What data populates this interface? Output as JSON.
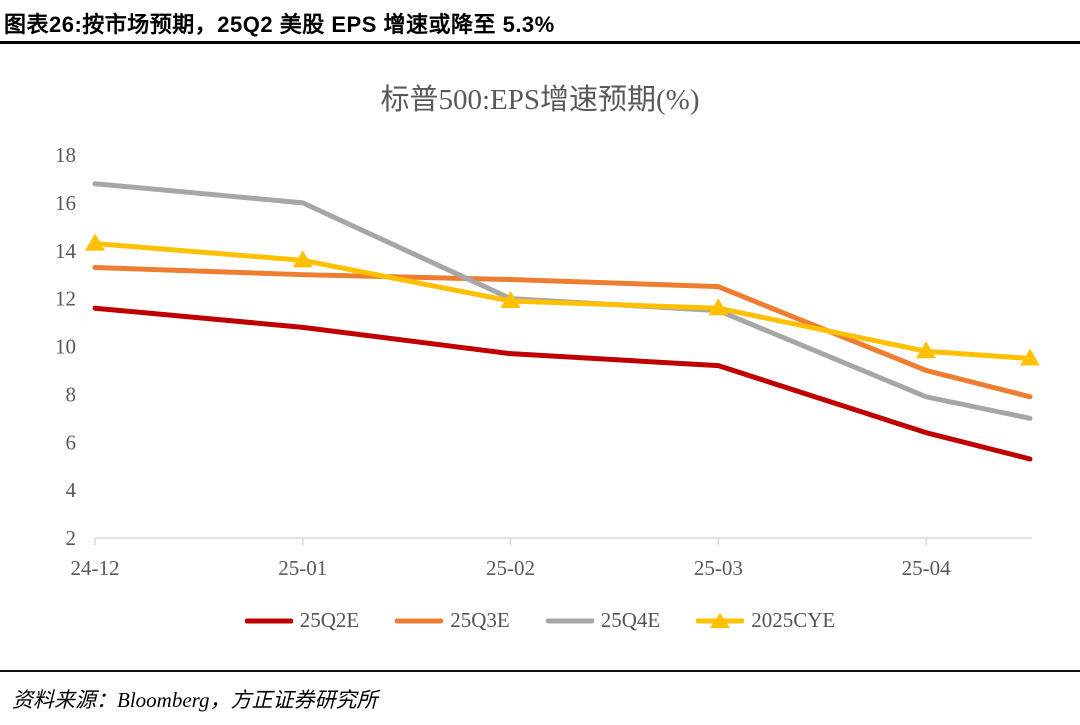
{
  "header": {
    "caption": "图表26:按市场预期，25Q2 美股 EPS 增速或降至 5.3%"
  },
  "chart_data": {
    "type": "line",
    "title": "标普500:EPS增速预期(%)",
    "categories": [
      "24-12",
      "25-01",
      "25-02",
      "25-03",
      "25-04"
    ],
    "x_index": [
      0,
      1,
      2,
      3,
      4,
      4.5
    ],
    "x_max_index": 4.5,
    "ylim": [
      2,
      18
    ],
    "yticks": [
      2,
      4,
      6,
      8,
      10,
      12,
      14,
      16,
      18
    ],
    "grid": false,
    "legend_position": "bottom",
    "series": [
      {
        "name": "25Q2E",
        "color": "#C00000",
        "marker": "none",
        "values": [
          11.6,
          10.8,
          9.7,
          9.2,
          6.4,
          5.3
        ]
      },
      {
        "name": "25Q3E",
        "color": "#ED7D31",
        "marker": "none",
        "values": [
          13.3,
          13.0,
          12.8,
          12.5,
          9.0,
          7.9
        ]
      },
      {
        "name": "25Q4E",
        "color": "#A6A6A6",
        "marker": "none",
        "values": [
          16.8,
          16.0,
          12.0,
          11.5,
          7.9,
          7.0
        ]
      },
      {
        "name": "2025CYE",
        "color": "#FFC000",
        "marker": "triangle",
        "values": [
          14.3,
          13.6,
          11.9,
          11.6,
          9.8,
          9.5
        ]
      }
    ]
  },
  "footer": {
    "source": "资料来源：Bloomberg，方正证券研究所"
  },
  "colors": {
    "axis_line": "#D9D9D9",
    "tick_label": "#595959"
  }
}
